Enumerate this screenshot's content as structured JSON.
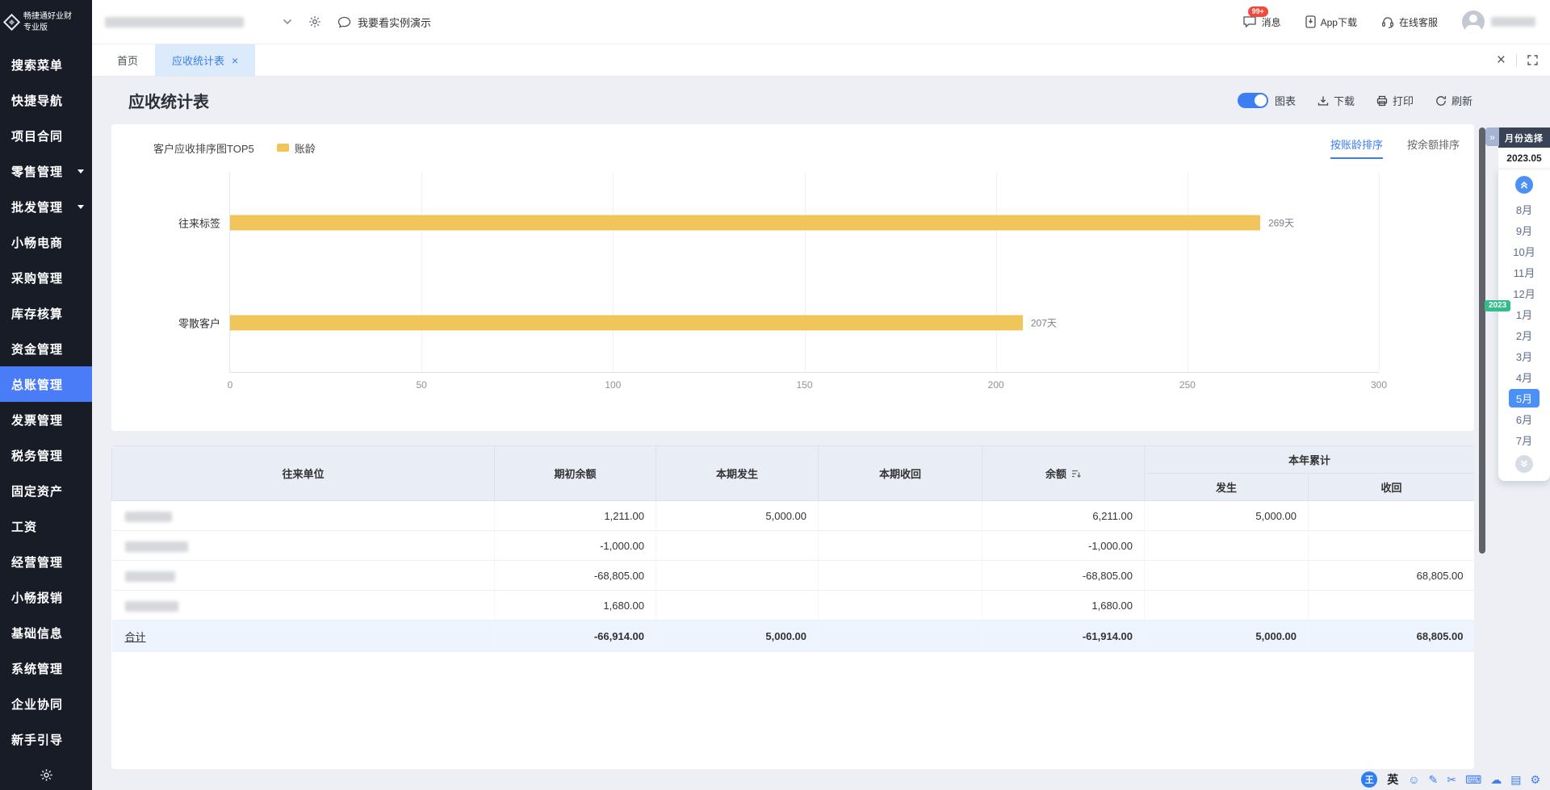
{
  "app": {
    "name": "畅捷通好业财",
    "edition": "专业版"
  },
  "sidebar": {
    "items": [
      {
        "label": "搜索菜单"
      },
      {
        "label": "快捷导航"
      },
      {
        "label": "项目合同"
      },
      {
        "label": "零售管理",
        "expandable": true
      },
      {
        "label": "批发管理",
        "expandable": true
      },
      {
        "label": "小畅电商"
      },
      {
        "label": "采购管理"
      },
      {
        "label": "库存核算"
      },
      {
        "label": "资金管理"
      },
      {
        "label": "总账管理",
        "active": true
      },
      {
        "label": "发票管理"
      },
      {
        "label": "税务管理"
      },
      {
        "label": "固定资产"
      },
      {
        "label": "工资"
      },
      {
        "label": "经营管理"
      },
      {
        "label": "小畅报销"
      },
      {
        "label": "基础信息"
      },
      {
        "label": "系统管理"
      },
      {
        "label": "企业协同"
      },
      {
        "label": "新手引导"
      }
    ]
  },
  "topbar": {
    "demo_label": "我要看实例演示",
    "messages_label": "消息",
    "messages_badge": "99+",
    "app_download_label": "App下载",
    "service_label": "在线客服"
  },
  "tabs": [
    {
      "label": "首页",
      "active": false,
      "closable": false
    },
    {
      "label": "应收统计表",
      "active": true,
      "closable": true
    }
  ],
  "page": {
    "title": "应收统计表",
    "chart_toggle_label": "图表",
    "chart_toggle_on": true,
    "download_label": "下载",
    "print_label": "打印",
    "refresh_label": "刷新"
  },
  "chart_section": {
    "legend_title": "客户应收排序图TOP5",
    "legend_series": "账龄",
    "sort_options": [
      {
        "label": "按账龄排序",
        "active": true
      },
      {
        "label": "按余额排序",
        "active": false
      }
    ]
  },
  "chart_data": {
    "type": "bar",
    "orientation": "horizontal",
    "title": "客户应收排序图TOP5",
    "series_name": "账龄",
    "categories": [
      "往来标签",
      "零散客户"
    ],
    "values": [
      269,
      207
    ],
    "value_labels": [
      "269天",
      "207天"
    ],
    "unit": "天",
    "xlim": [
      0,
      300
    ],
    "x_ticks": [
      0,
      50,
      100,
      150,
      200,
      250,
      300
    ],
    "bar_color": "#f2c55c",
    "grid": true,
    "legend_position": "top-left"
  },
  "table": {
    "columns": [
      "往来单位",
      "期初余额",
      "本期发生",
      "本期收回",
      "余额"
    ],
    "year_group": {
      "label": "本年累计",
      "children": [
        "发生",
        "收回"
      ]
    },
    "sorted_column": "余额",
    "rows": [
      {
        "redacted": true,
        "redacted_width": 58,
        "values": [
          "1,211.00",
          "5,000.00",
          "",
          "6,211.00",
          "5,000.00",
          ""
        ]
      },
      {
        "redacted": true,
        "redacted_width": 78,
        "values": [
          "-1,000.00",
          "",
          "",
          "-1,000.00",
          "",
          ""
        ]
      },
      {
        "redacted": true,
        "redacted_width": 62,
        "values": [
          "-68,805.00",
          "",
          "",
          "-68,805.00",
          "",
          "68,805.00"
        ]
      },
      {
        "redacted": true,
        "redacted_width": 66,
        "values": [
          "1,680.00",
          "",
          "",
          "1,680.00",
          "",
          ""
        ]
      }
    ],
    "total": {
      "label": "合计",
      "values": [
        "-66,914.00",
        "5,000.00",
        "",
        "-61,914.00",
        "5,000.00",
        "68,805.00"
      ]
    }
  },
  "month_panel": {
    "title": "月份选择",
    "current": "2023.05",
    "year_badge": "2023",
    "badge_after_index": 4,
    "months": [
      "8月",
      "9月",
      "10月",
      "11月",
      "12月",
      "1月",
      "2月",
      "3月",
      "4月",
      "5月",
      "6月",
      "7月"
    ],
    "active_month": "5月"
  },
  "icons": {
    "close_tab": "×",
    "close_all": "×",
    "collapse_panel": "»"
  },
  "ime": {
    "logo": "王",
    "lang": "英",
    "icons": [
      {
        "name": "emoji-icon",
        "glyph": "☺"
      },
      {
        "name": "pen-icon",
        "glyph": "✎"
      },
      {
        "name": "scissors-icon",
        "glyph": "✂"
      },
      {
        "name": "keyboard-icon",
        "glyph": "⌨"
      },
      {
        "name": "cloud-icon",
        "glyph": "☁"
      },
      {
        "name": "toolbox-icon",
        "glyph": "▤"
      },
      {
        "name": "gear-icon",
        "glyph": "⚙"
      }
    ]
  },
  "colors": {
    "accent_blue": "#3d7ef2",
    "active_menu_blue": "#4a7cf8",
    "bar_yellow": "#f2c55c",
    "badge_red": "#f5483b",
    "badge_green": "#32bd8b",
    "sidebar_bg": "#181c27",
    "table_header_bg": "#e9edf6",
    "total_row_bg": "#edf4fd"
  }
}
